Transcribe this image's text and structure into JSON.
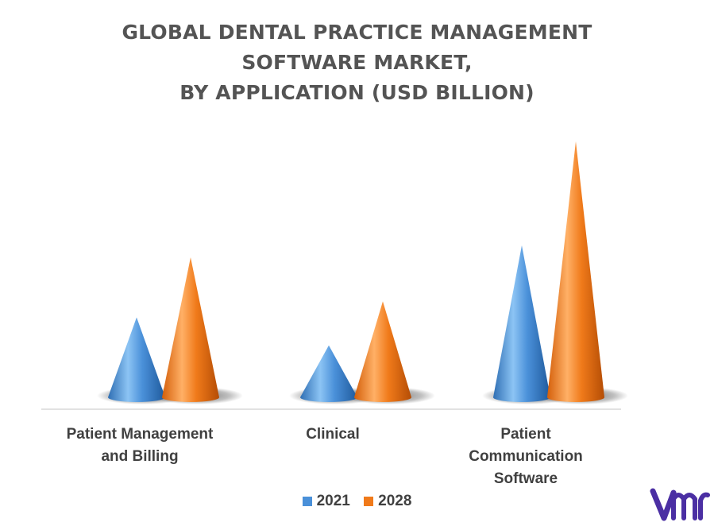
{
  "title_lines": [
    "GLOBAL DENTAL PRACTICE MANAGEMENT",
    "SOFTWARE MARKET,",
    "BY APPLICATION (USD BILLION)"
  ],
  "category_labels": [
    [
      "Patient Management",
      "and Billing"
    ],
    [
      "Clinical"
    ],
    [
      "Patient",
      "Communication",
      "Software"
    ]
  ],
  "colors": {
    "2021": "#4a90d9",
    "2028": "#f07a1a",
    "baseline": "#d9d9d9",
    "title": "#545454",
    "logo": "#4b2fa3"
  },
  "chart_data": {
    "type": "bar",
    "style": "3d-cone",
    "title": "GLOBAL DENTAL PRACTICE MANAGEMENT SOFTWARE MARKET, BY APPLICATION (USD BILLION)",
    "categories": [
      "Patient Management and Billing",
      "Clinical",
      "Patient Communication Software"
    ],
    "series": [
      {
        "name": "2021",
        "values": [
          1.0,
          0.65,
          1.9
        ]
      },
      {
        "name": "2028",
        "values": [
          1.75,
          1.2,
          3.2
        ]
      }
    ],
    "ylim": [
      0,
      3.2
    ],
    "grid": false,
    "legend": "bottom"
  }
}
